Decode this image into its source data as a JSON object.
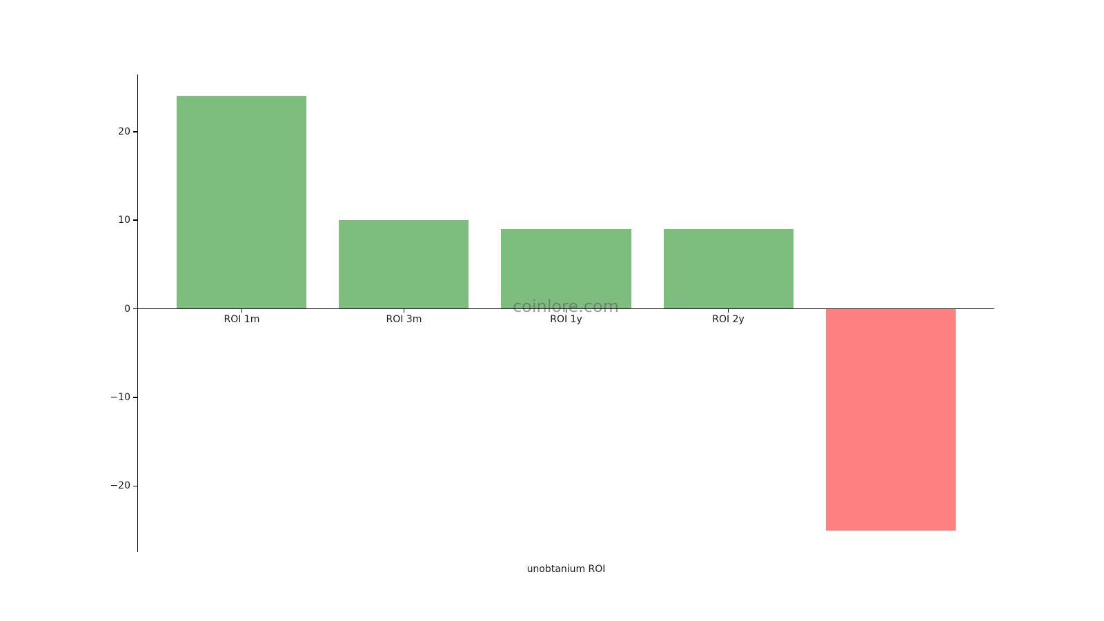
{
  "watermark": "coinlore.com",
  "chart_data": {
    "type": "bar",
    "title": "",
    "categories": [
      "ROI 1m",
      "ROI 3m",
      "ROI 1y",
      "ROI 2y",
      ""
    ],
    "values": [
      24,
      10,
      9,
      9,
      -25
    ],
    "bar_colors": [
      "#7dbd7d",
      "#7dbd7d",
      "#7dbd7d",
      "#7dbd7d",
      "#ff8080"
    ],
    "positive_color": "#7dbd7d",
    "negative_color": "#ff8080",
    "xlabel": "unobtanium ROI",
    "ylabel": "",
    "yticks": [
      20,
      10,
      0,
      -10,
      -20
    ],
    "ylim": [
      -27.45,
      26.45
    ],
    "xlim": [
      -0.64,
      4.64
    ],
    "bar_width": 0.8,
    "grid": false,
    "legend": null,
    "axis_color": "#000000",
    "text_color": "#1a1a1a"
  }
}
